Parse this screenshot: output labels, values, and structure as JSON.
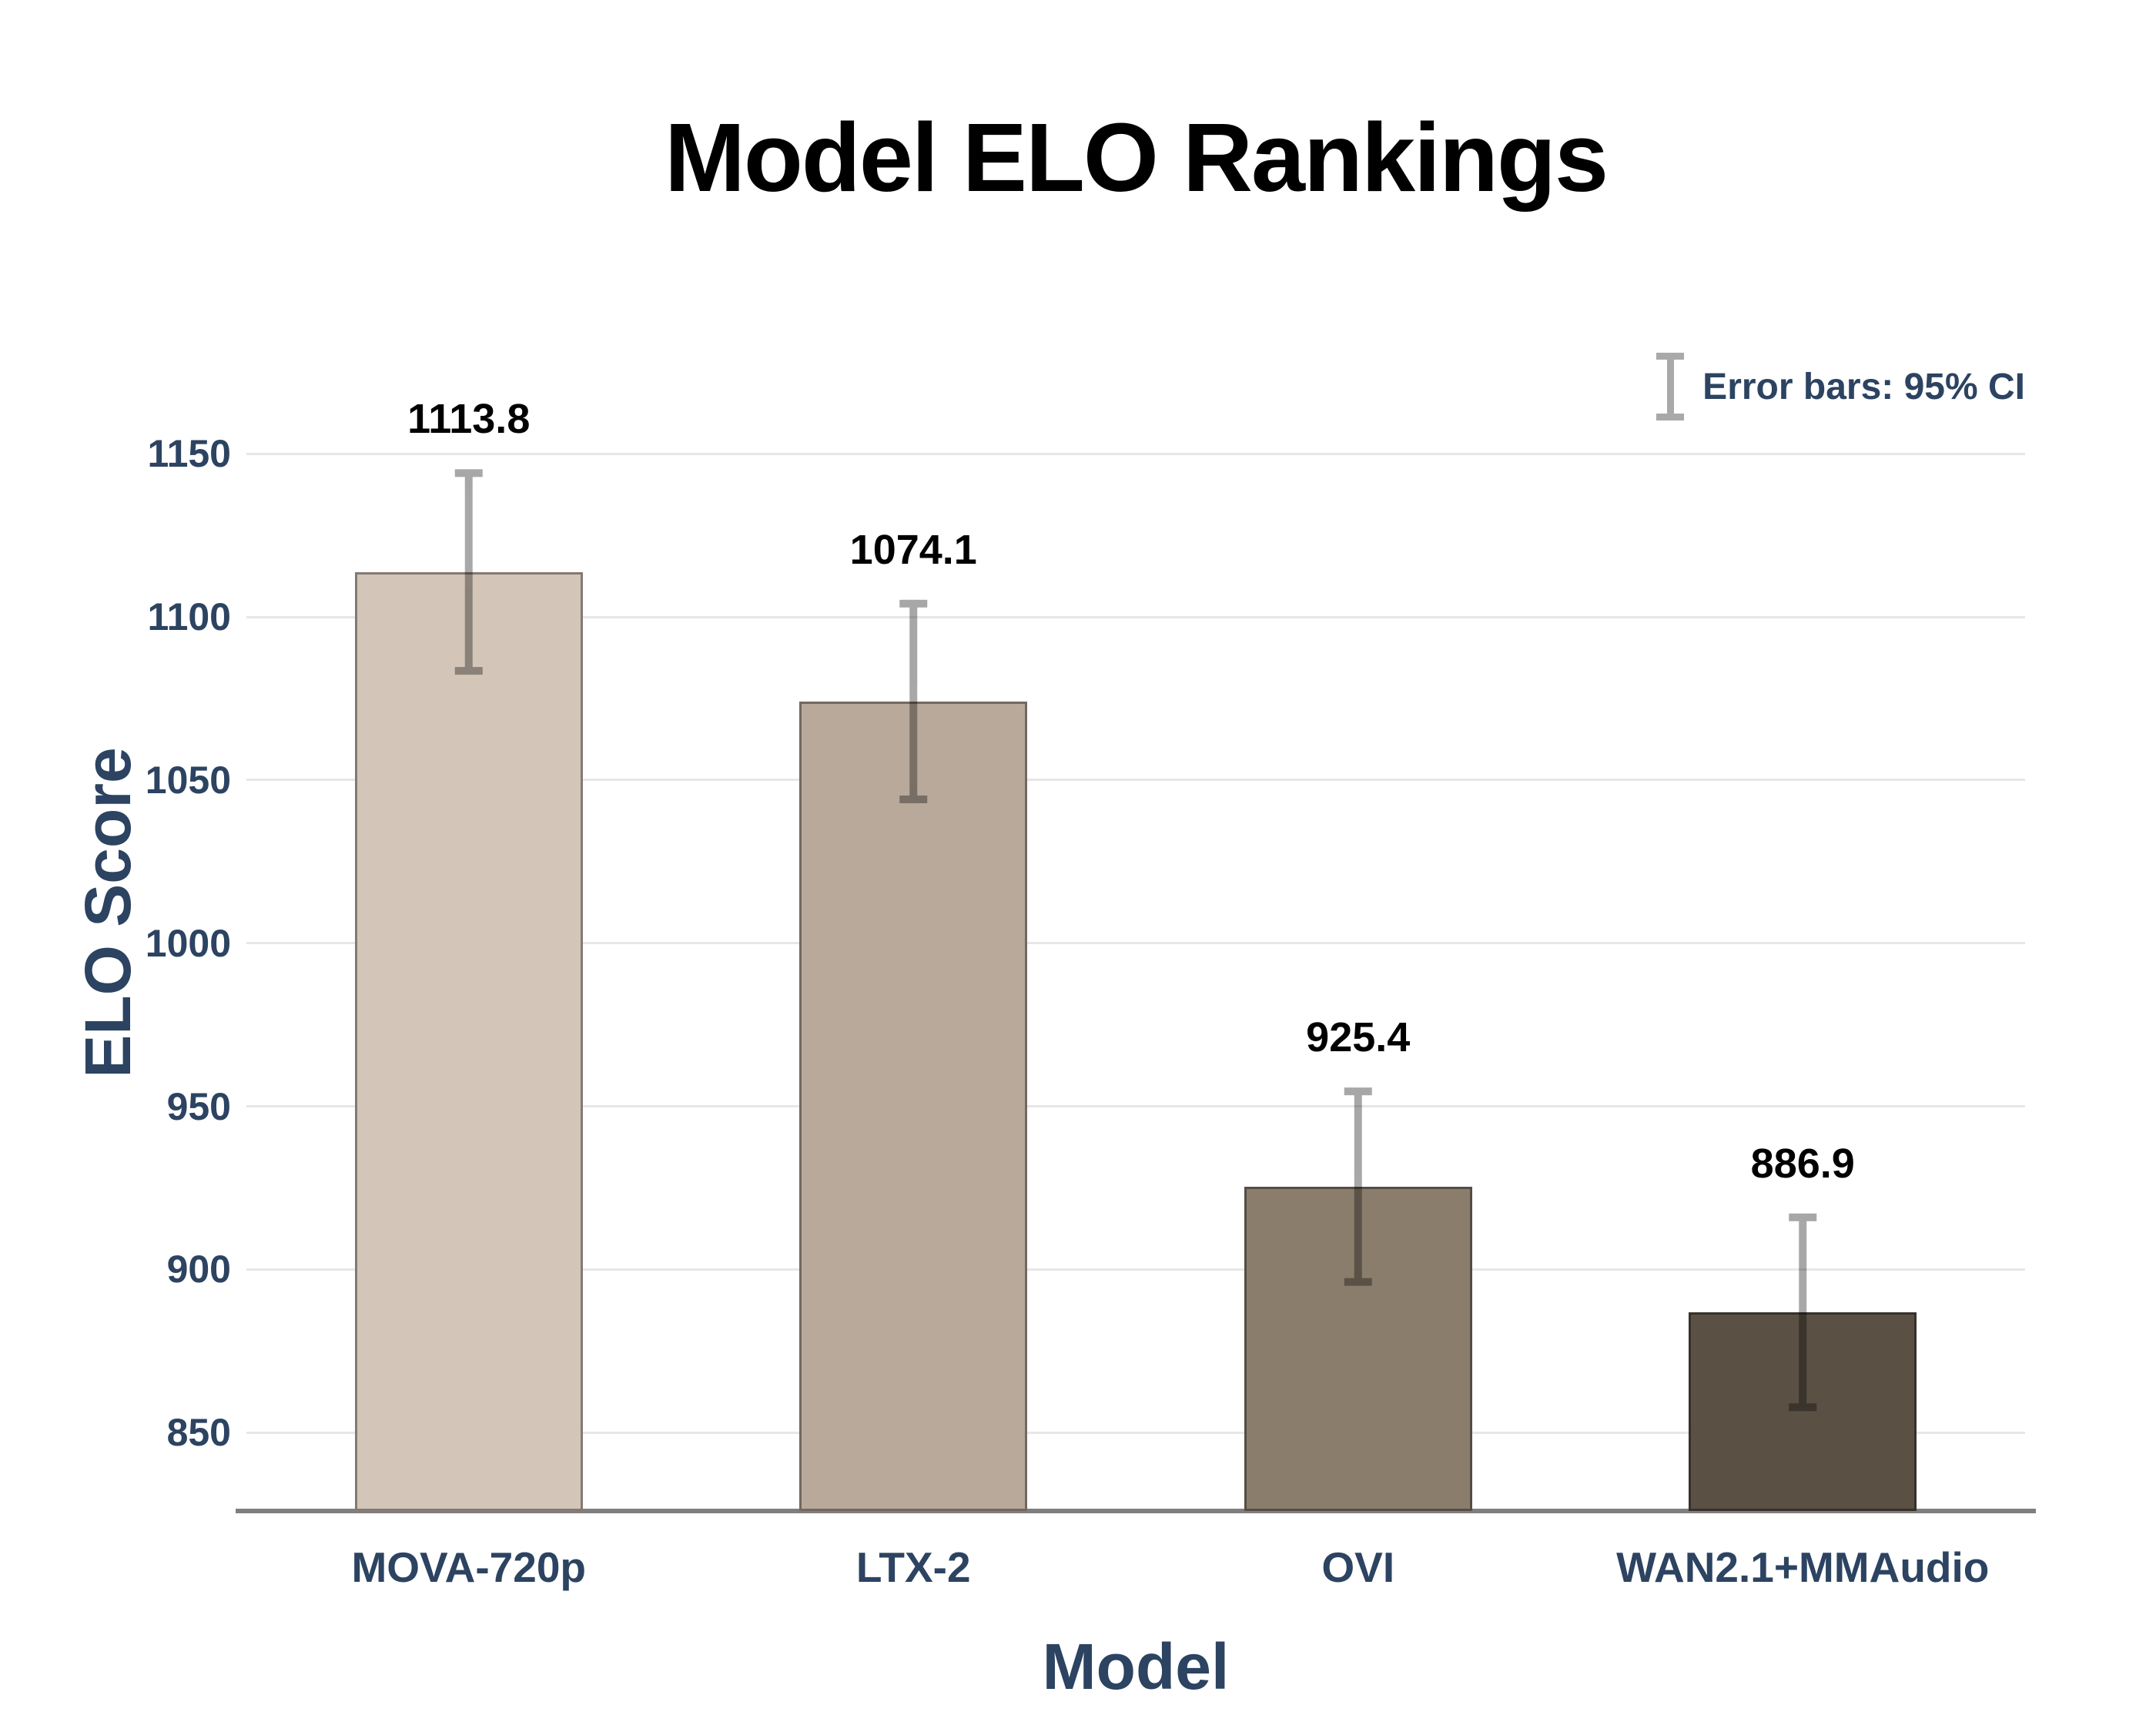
{
  "page": {
    "background": "#ffffff"
  },
  "chart_data": {
    "type": "bar",
    "title": "Model ELO Rankings",
    "xlabel": "Model",
    "ylabel": "ELO Score",
    "legend_note": "Error bars: 95% CI",
    "legend_position": "top-right",
    "categories": [
      "MOVA-720p",
      "LTX-2",
      "OVI",
      "WAN2.1+MMAudio"
    ],
    "values": [
      1113.8,
      1074.1,
      925.4,
      886.9
    ],
    "value_labels": [
      "1113.8",
      "1074.1",
      "925.4",
      "886.9"
    ],
    "ci95": [
      30.3,
      30.0,
      29.2,
      29.1
    ],
    "bar_colors": [
      "#d3c5b8",
      "#b8a99a",
      "#8a7d6c",
      "#5a5044"
    ],
    "yticks": [
      850,
      900,
      950,
      1000,
      1050,
      1100,
      1150
    ],
    "ylim": [
      826,
      1181
    ],
    "grid": true,
    "colors": {
      "title_text": "#000000",
      "axis_text": "#2c4361",
      "gridline": "#e7e7e7",
      "baseline": "#7f7f7f",
      "error_bar": "#000000",
      "error_bar_opacity": 0.34,
      "bar_border": "rgba(0,0,0,0.38)",
      "legend_icon": "#a9a9a9",
      "value_label_text": "#000000"
    }
  }
}
